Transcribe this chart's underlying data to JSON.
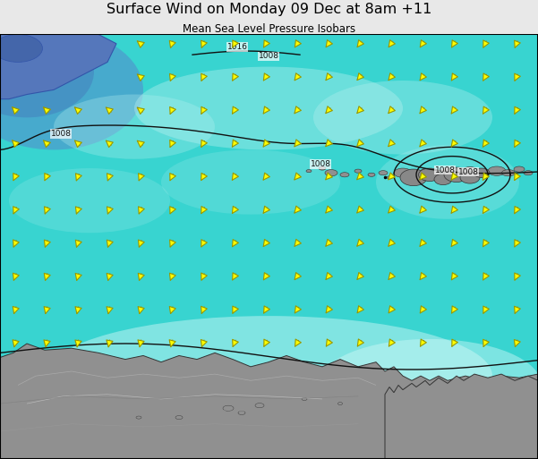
{
  "title": "Surface Wind on Monday 09 Dec at 8am +11",
  "subtitle": "Mean Sea Level Pressure Isobars",
  "title_fontsize": 11.5,
  "subtitle_fontsize": 8.5,
  "bg_color": "#e8e8e8",
  "ocean_base": "#40d8d8",
  "fig_width": 6.01,
  "fig_height": 5.13,
  "dpi": 100,
  "arrow_color": "#ffff00",
  "arrow_ec": "#999900",
  "isobar_color": "#111111",
  "isobar_lw": 1.0,
  "land_gray": "#909090",
  "land_blue": "#6688bb",
  "land_edge": "#333333"
}
